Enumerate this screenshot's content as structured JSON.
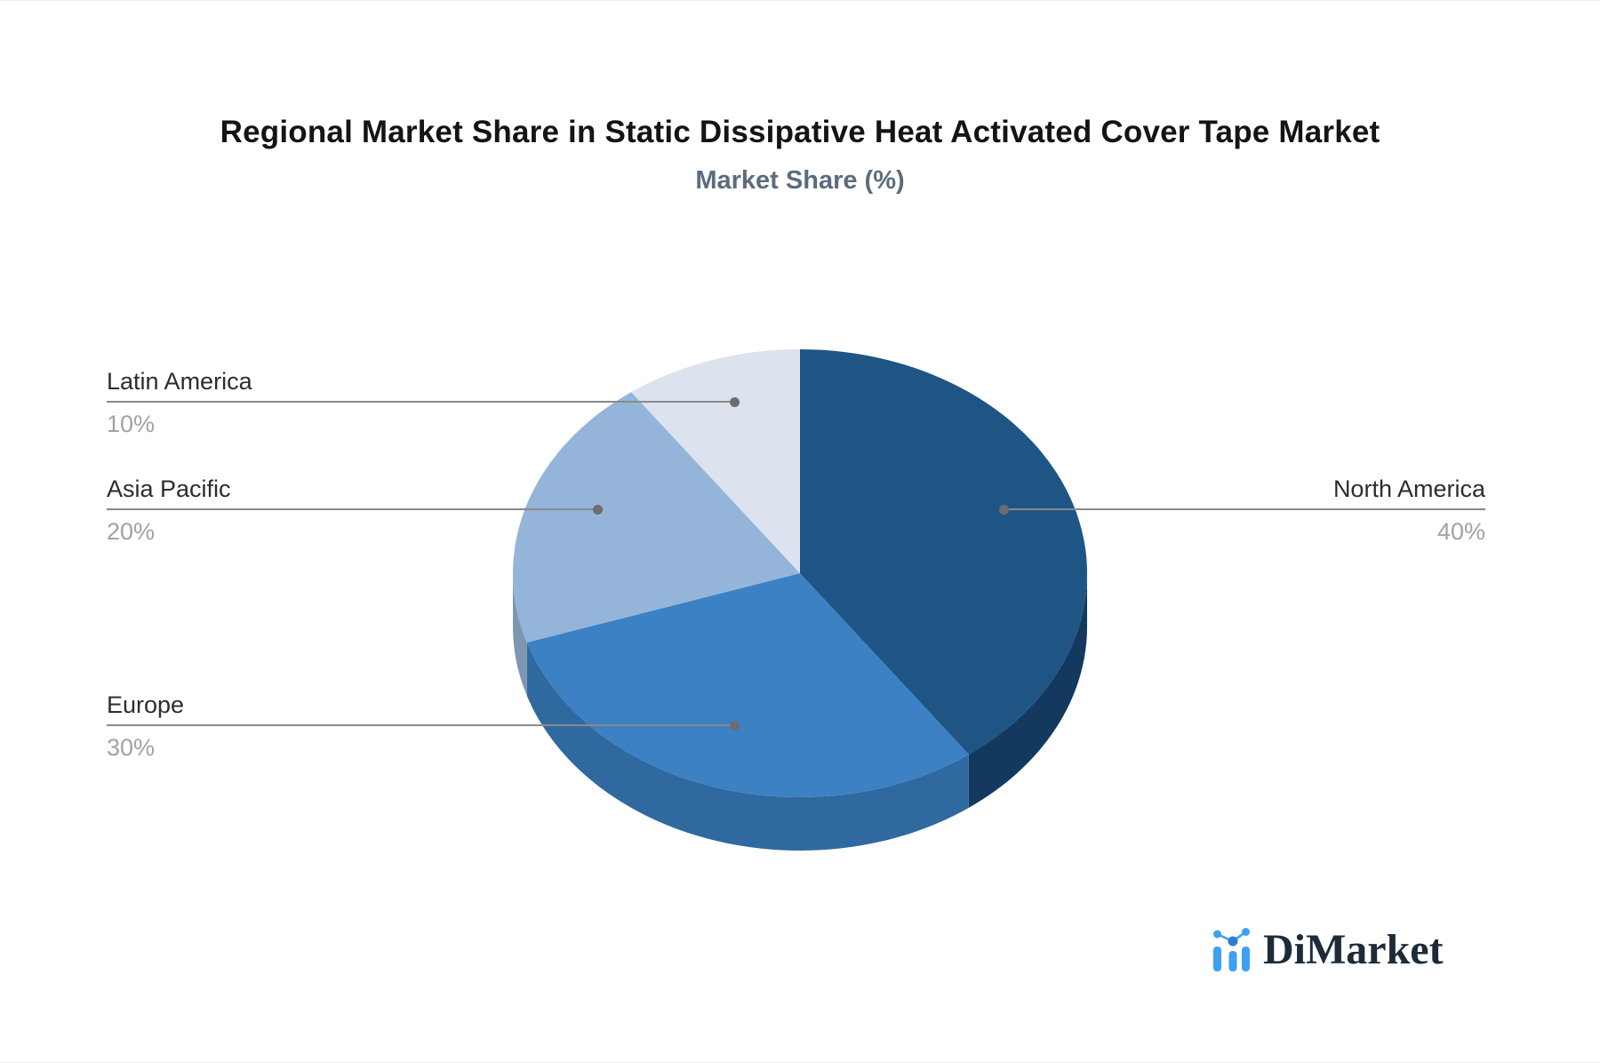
{
  "title": "Regional Market Share in Static Dissipative Heat Activated Cover Tape Market",
  "subtitle": "Market Share (%)",
  "chart_data": {
    "type": "pie",
    "style": "3d",
    "title": "Regional Market Share in Static Dissipative Heat Activated Cover Tape Market",
    "value_unit": "%",
    "categories": [
      "North America",
      "Europe",
      "Asia Pacific",
      "Latin America"
    ],
    "values": [
      40,
      30,
      20,
      10
    ],
    "labels": [
      "40%",
      "30%",
      "20%",
      "10%"
    ],
    "start_angle_deg": 0,
    "clockwise": true,
    "legend_position": "callout-labels",
    "colors": {
      "face": [
        "#1e5585",
        "#3b81c4",
        "#94b5d9",
        "#dce3ee"
      ],
      "rim": [
        "#13395e",
        "#30699f",
        "#7d97b3",
        "#c9d2e0"
      ]
    },
    "leader_line_color": "#898989",
    "label_color": "#2d2d2d",
    "value_color": "#a2a2a2"
  },
  "brand": {
    "name": "DiMarket",
    "icon": "bar-chart-logo-icon",
    "text_color": "#1d2b39",
    "icon_color": "#3ea0f2",
    "icon_accent_color": "#2c7cd8"
  }
}
